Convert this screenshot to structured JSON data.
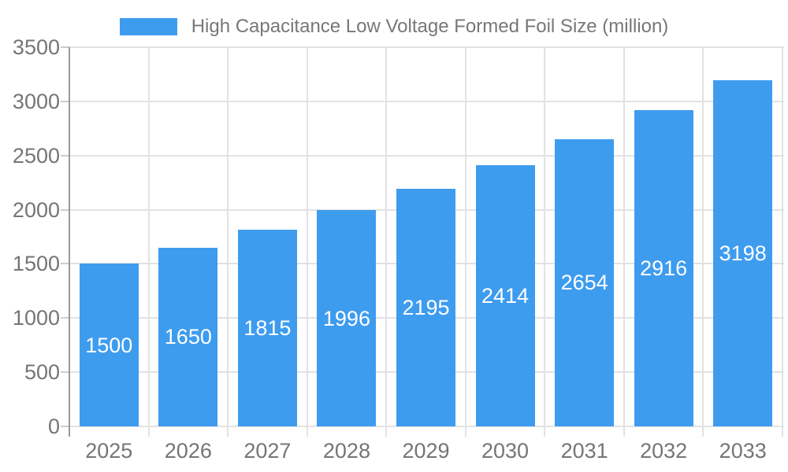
{
  "chart_data": {
    "type": "bar",
    "legend": "High Capacitance Low Voltage Formed Foil Size (million)",
    "categories": [
      "2025",
      "2026",
      "2027",
      "2028",
      "2029",
      "2030",
      "2031",
      "2032",
      "2033"
    ],
    "values": [
      1500,
      1650,
      1815,
      1996,
      2195,
      2414,
      2654,
      2916,
      3198
    ],
    "value_labels": [
      "1500",
      "1650",
      "1815",
      "1996",
      "2195",
      "2414",
      "2654",
      "2916",
      "3198"
    ],
    "yticks": [
      0,
      500,
      1000,
      1500,
      2000,
      2500,
      3000,
      3500
    ],
    "ylim": [
      0,
      3500
    ],
    "grid": true,
    "legend_position": "top-center",
    "value_label_position": "inside-center"
  },
  "colors": {
    "bar": "#3E9CEF",
    "grid": "#E2E2E2",
    "axis_line": "#999999",
    "tick": "#CCCCCC",
    "axis_text": "#757575",
    "legend_text": "#777777",
    "value_text": "#FFFFFF",
    "background": "#FFFFFF"
  }
}
